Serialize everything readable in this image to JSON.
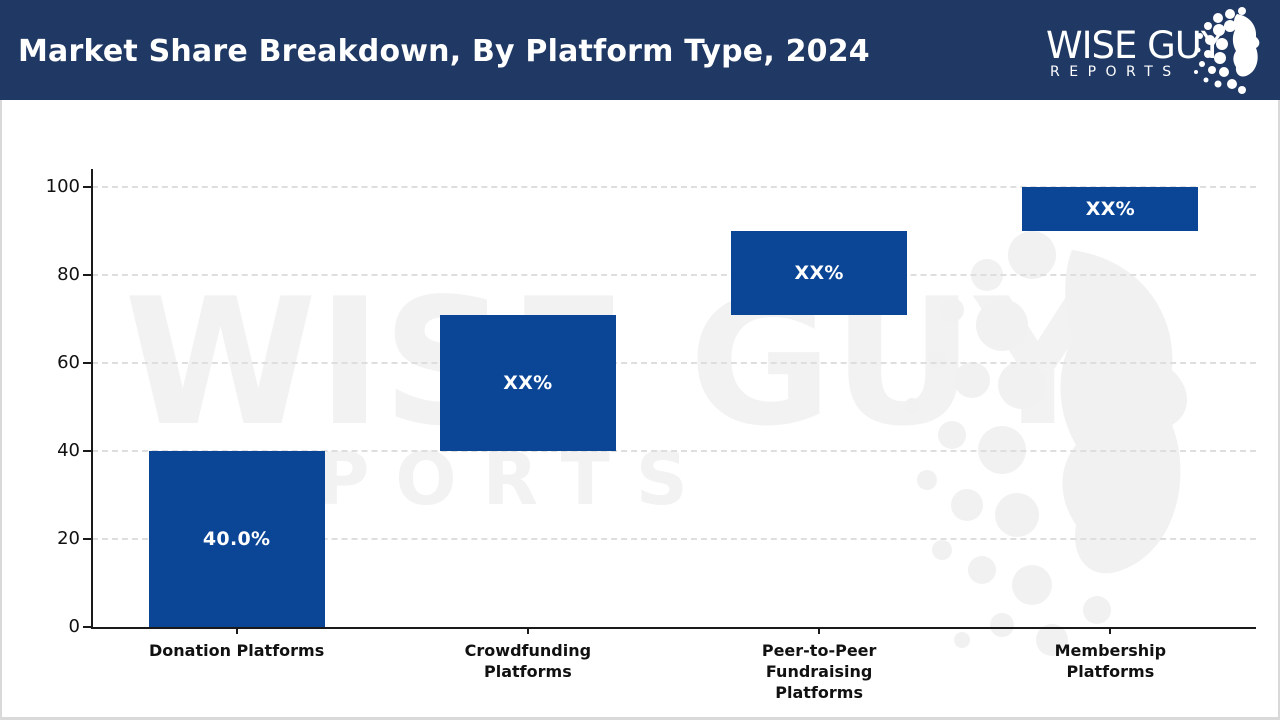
{
  "header": {
    "title": "Market Share Breakdown, By Platform Type, 2024",
    "bg_color": "#1f3864",
    "logo": {
      "line1": "WISE GUY",
      "line2": "REPORTS"
    }
  },
  "watermark": {
    "line1": "WISE GUY",
    "line2": "REPORTS"
  },
  "chart_data": {
    "type": "bar",
    "subtype": "waterfall",
    "title": "Market Share Breakdown, By Platform Type, 2024",
    "xlabel": "",
    "ylabel": "",
    "ylim": [
      0,
      100
    ],
    "yticks": [
      0,
      20,
      40,
      60,
      80,
      100
    ],
    "grid": "horizontal-dashed",
    "legend": "none",
    "bar_color": "#0b4596",
    "categories": [
      [
        "Donation Platforms"
      ],
      [
        "Crowdfunding",
        "Platforms"
      ],
      [
        "Peer-to-Peer",
        "Fundraising",
        "Platforms"
      ],
      [
        "Membership",
        "Platforms"
      ]
    ],
    "segments": [
      {
        "category": "Donation Platforms",
        "start": 0,
        "end": 40,
        "value": 40,
        "label": "40.0%"
      },
      {
        "category": "Crowdfunding Platforms",
        "start": 40,
        "end": 71,
        "value": 31,
        "label": "XX%"
      },
      {
        "category": "Peer-to-Peer Fundraising Platforms",
        "start": 71,
        "end": 90,
        "value": 19,
        "label": "XX%"
      },
      {
        "category": "Membership Platforms",
        "start": 90,
        "end": 100,
        "value": 10,
        "label": "XX%"
      }
    ]
  }
}
